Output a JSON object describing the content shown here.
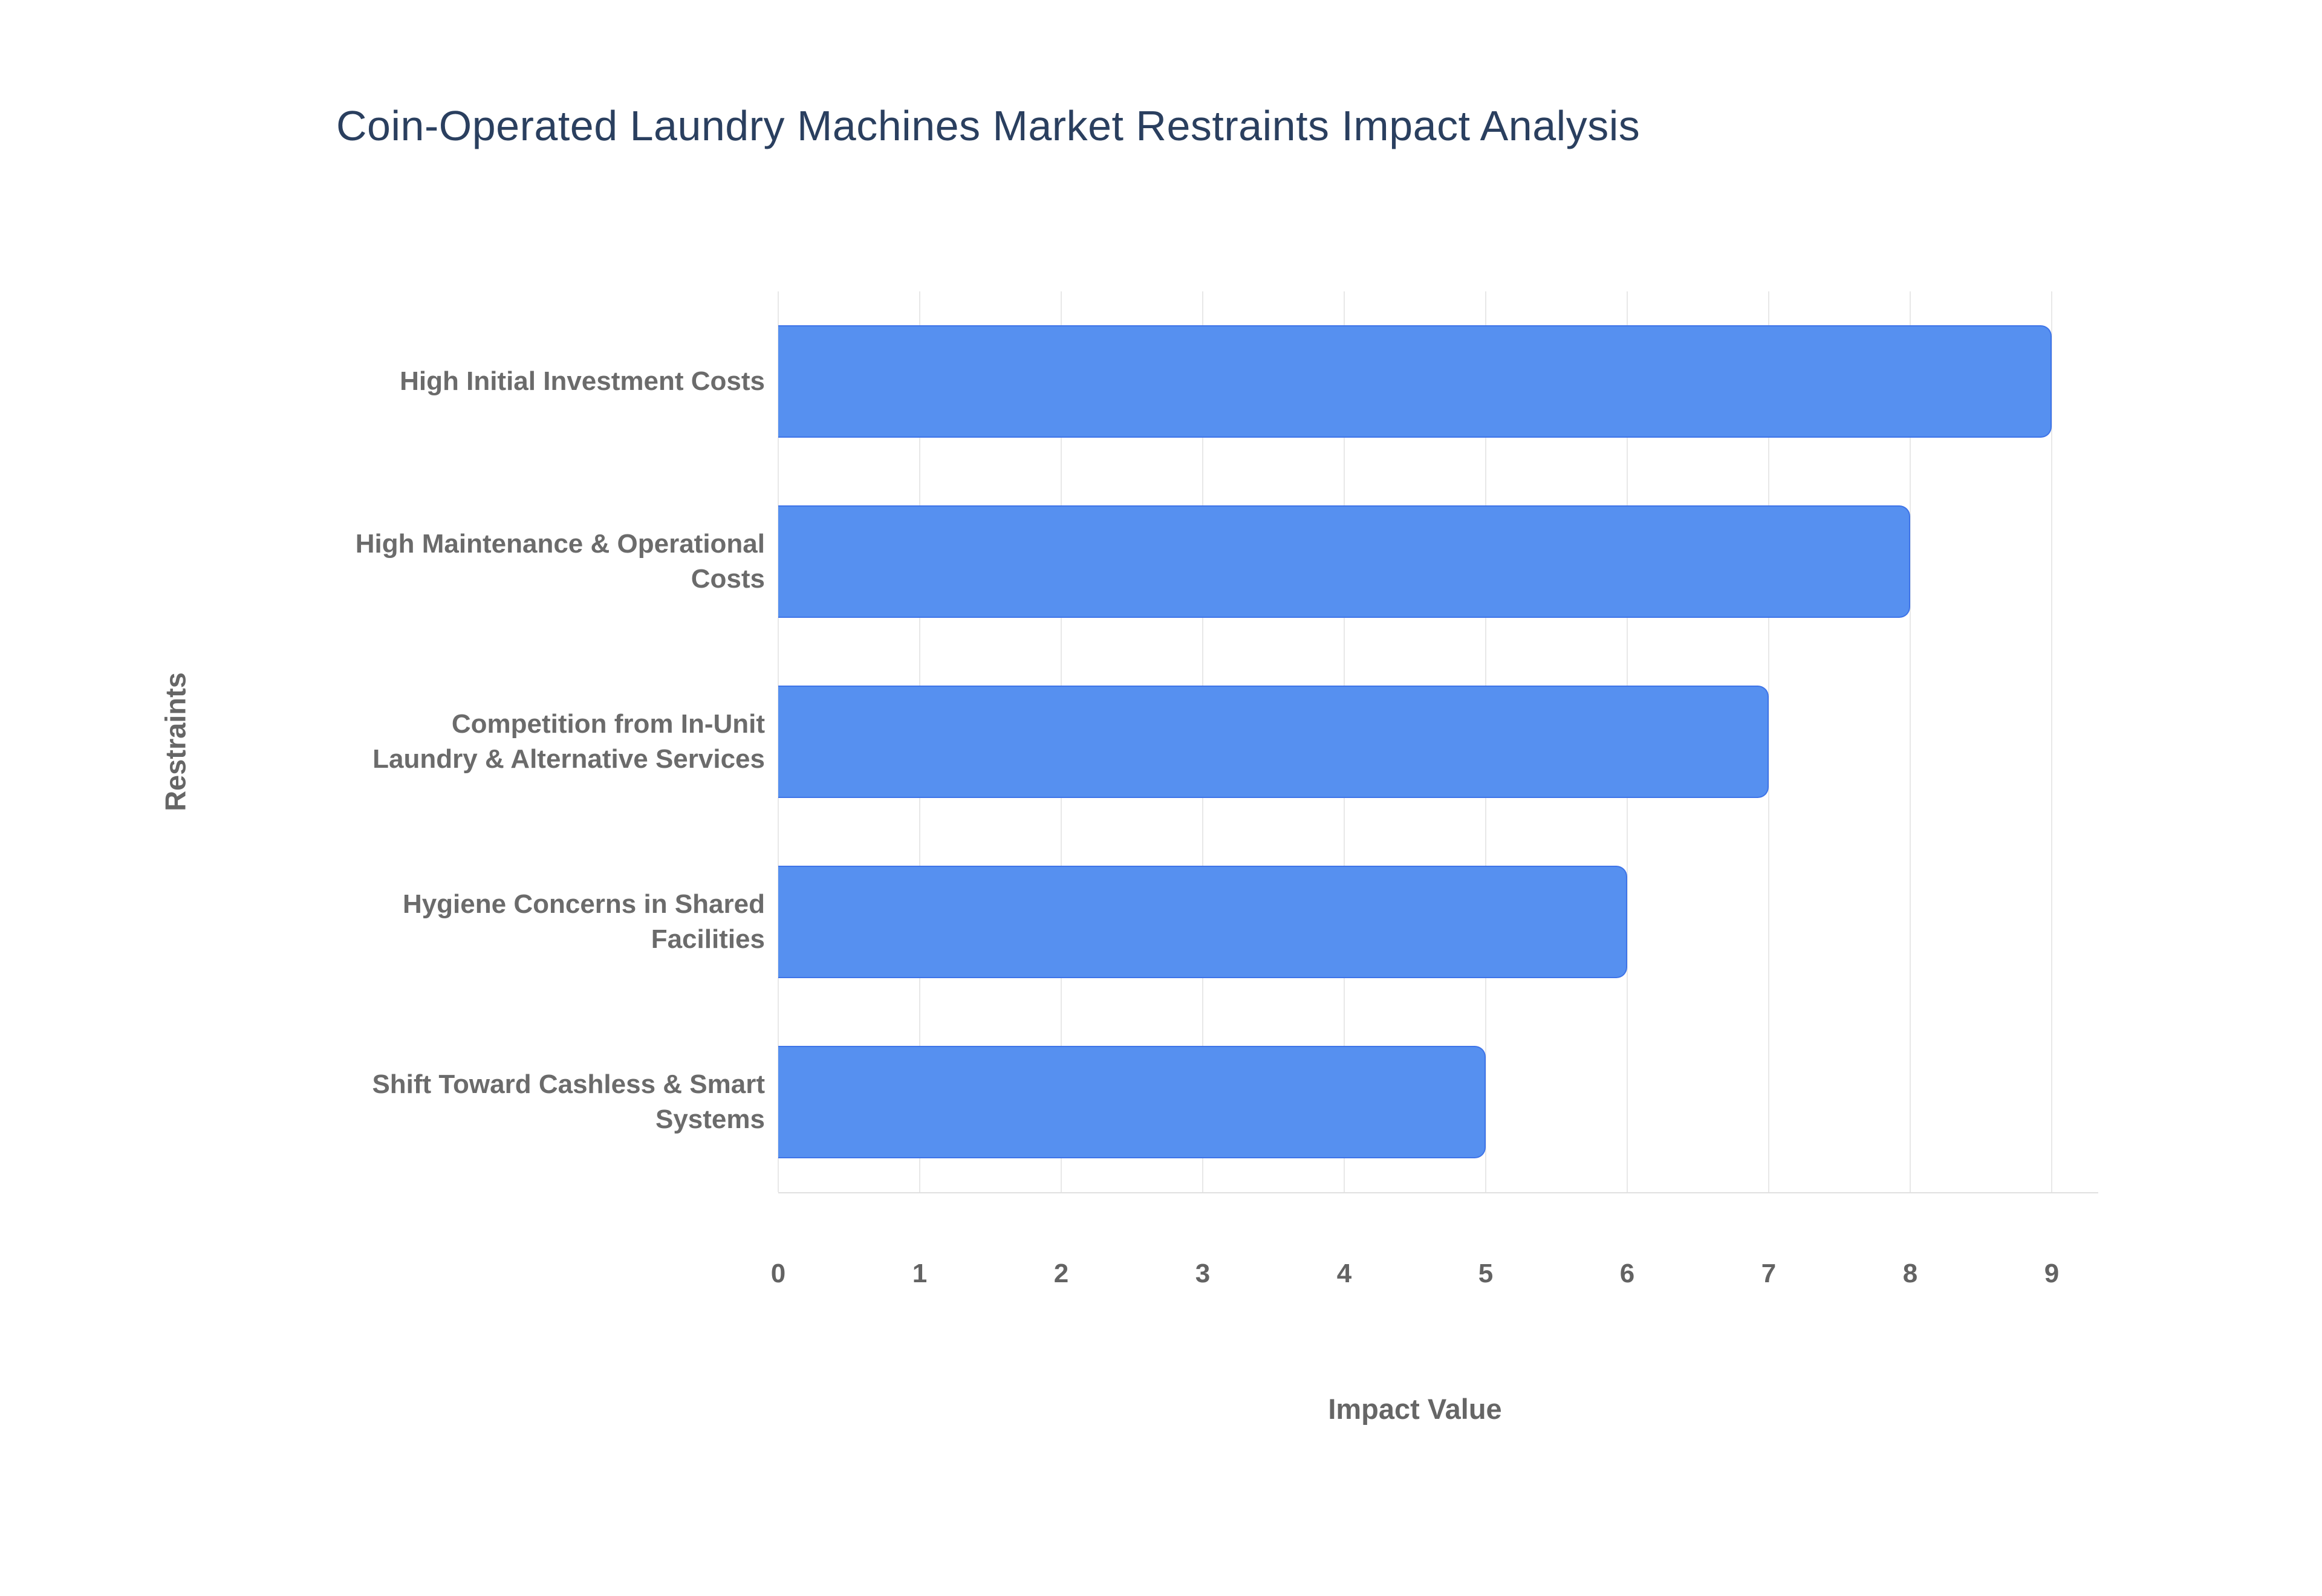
{
  "chart_data": {
    "type": "bar",
    "orientation": "horizontal",
    "title": "Coin-Operated Laundry Machines Market Restraints Impact Analysis",
    "xlabel": "Impact Value",
    "ylabel": "Restraints",
    "categories": [
      "High Initial Investment Costs",
      "High Maintenance & Operational Costs",
      "Competition from In-Unit Laundry & Alternative Services",
      "Hygiene Concerns in Shared Facilities",
      "Shift Toward Cashless & Smart Systems"
    ],
    "category_label_lines": [
      [
        "High Initial Investment Costs"
      ],
      [
        "High Maintenance & Operational",
        "Costs"
      ],
      [
        "Competition from In-Unit",
        "Laundry & Alternative Services"
      ],
      [
        "Hygiene Concerns in Shared",
        "Facilities"
      ],
      [
        "Shift Toward Cashless & Smart",
        "Systems"
      ]
    ],
    "values": [
      9,
      8,
      7,
      6,
      5
    ],
    "xticks": [
      0,
      1,
      2,
      3,
      4,
      5,
      6,
      7,
      8,
      9
    ],
    "xlim": [
      0,
      9.3
    ],
    "grid": true,
    "legend": false,
    "colors": {
      "bar_fill": "#5690f0",
      "bar_border": "#3e74e8",
      "gridline": "#e8e8e8",
      "axis_line": "#e0e0e0",
      "title_text": "#2a3f5f",
      "category_label_text": "#6b6b6b",
      "tick_text": "#636363",
      "axis_title_text": "#666666"
    }
  }
}
